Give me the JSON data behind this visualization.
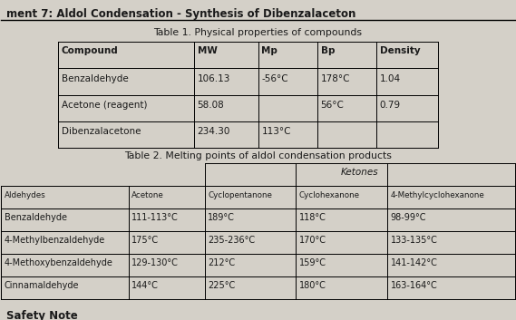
{
  "title_line": "ment 7: Aldol Condensation - Synthesis of Dibenzalaceton",
  "table1_title": "Table 1. Physical properties of compounds",
  "table1_headers": [
    "Compound",
    "MW",
    "Mp",
    "Bp",
    "Density"
  ],
  "table1_rows": [
    [
      "Benzaldehyde",
      "106.13",
      "-56°C",
      "178°C",
      "1.04"
    ],
    [
      "Acetone (reagent)",
      "58.08",
      "",
      "56°C",
      "0.79"
    ],
    [
      "Dibenzalacetone",
      "234.30",
      "113°C",
      "",
      ""
    ]
  ],
  "table2_title": "Table 2. Melting points of aldol condensation products",
  "table2_ketones_label": "Ketones",
  "table2_headers": [
    "Aldehydes",
    "Acetone",
    "Cyclopentanone",
    "Cyclohexanone",
    "4-Methylcyclohexanone"
  ],
  "table2_rows": [
    [
      "Benzaldehyde",
      "111-113°C",
      "189°C",
      "118°C",
      "98-99°C"
    ],
    [
      "4-Methylbenzaldehyde",
      "175°C",
      "235-236°C",
      "170°C",
      "133-135°C"
    ],
    [
      "4-Methoxybenzaldehyde",
      "129-130°C",
      "212°C",
      "159°C",
      "141-142°C"
    ],
    [
      "Cinnamaldehyde",
      "144°C",
      "225°C",
      "180°C",
      "163-164°C"
    ]
  ],
  "safety_note": "Safety Note",
  "bg_color": "#d4d0c8",
  "text_color": "#1a1a1a"
}
